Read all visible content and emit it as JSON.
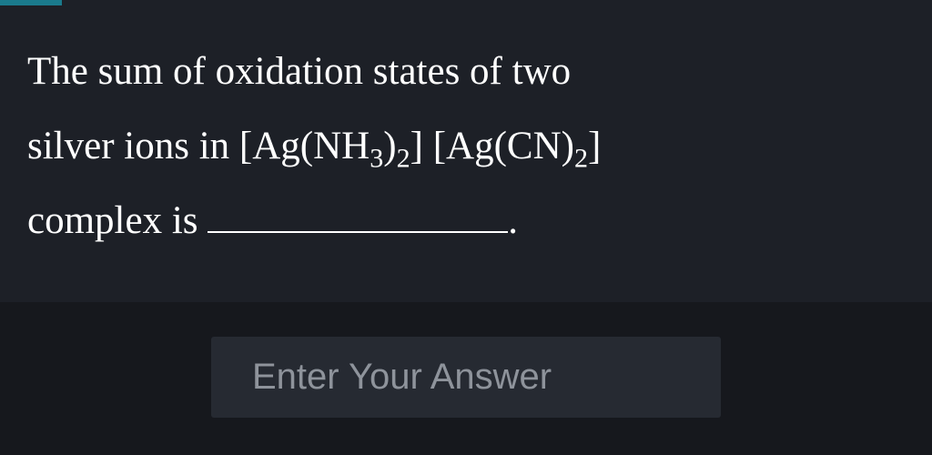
{
  "colors": {
    "page_background": "#16181d",
    "panel_background": "#1d2027",
    "accent": "#1a7a8c",
    "text": "#ffffff",
    "input_background": "#262a32",
    "input_placeholder": "#8e939b"
  },
  "question": {
    "line1_a": "The sum of oxidation states of two",
    "line2_a": "silver ions in [Ag(NH",
    "line2_sub1": "3",
    "line2_b": ")",
    "line2_sub2": "2",
    "line2_c": "] [Ag(CN)",
    "line2_sub3": "2",
    "line2_d": "]",
    "line3_a": "complex is ",
    "line3_b": "."
  },
  "answer": {
    "placeholder": "Enter Your Answer",
    "value": ""
  },
  "typography": {
    "question_fontsize": 43,
    "question_lineheight": 1.9,
    "input_fontsize": 40
  }
}
